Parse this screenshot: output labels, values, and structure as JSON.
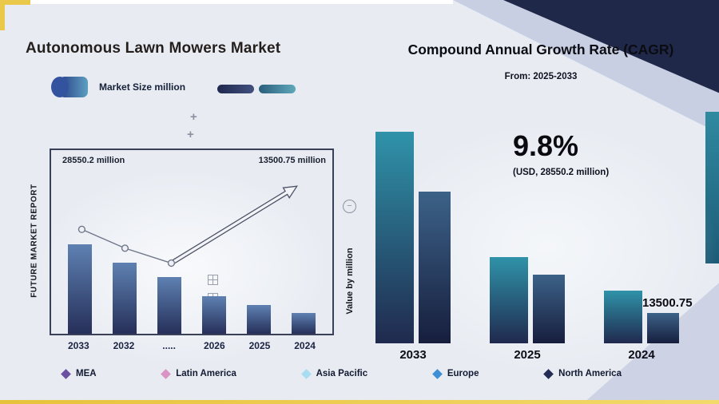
{
  "page": {
    "background": "#e8ecf2",
    "accent_yellow": "#e9c84a",
    "corner_navy": "#1f2849",
    "edge_teal": "#2f8aa0"
  },
  "left": {
    "title": "Autonomous Lawn Mowers Market",
    "legend_label": "Market Size million",
    "side_label": "FUTURE MARKET REPORT",
    "annotation_left": "28550.2 million",
    "annotation_right": "13500.75 million"
  },
  "right": {
    "title": "Compound Annual Growth Rate (CAGR)",
    "subtitle": "From: 2025-2033",
    "cagr": "9.8%",
    "cagr_note": "(USD, 28550.2 million)",
    "axis_label": "Value by million",
    "value_label": "13500.75"
  },
  "decor": {
    "plus": "+",
    "minus": "−"
  },
  "legend": {
    "items": [
      {
        "label": "MEA",
        "color": "#6b4fa0"
      },
      {
        "label": "Latin America",
        "color": "#d993c4"
      },
      {
        "label": "Asia Pacific",
        "color": "#a8dcf0"
      },
      {
        "label": "Europe",
        "color": "#3f8fd6"
      },
      {
        "label": "North America",
        "color": "#232c54"
      }
    ]
  },
  "chart_data": [
    {
      "type": "bar",
      "title": "Autonomous Lawn Mowers Market",
      "unit": "Market Size million",
      "categories": [
        "2033",
        "2032",
        ".....",
        "2026",
        "2025",
        "2024"
      ],
      "values_relative": [
        112,
        89,
        71,
        47,
        36,
        26
      ],
      "bar_gradient": [
        "#5e81b2",
        "#262f59"
      ],
      "annotations": [
        {
          "text": "28550.2 million",
          "at": "2033"
        },
        {
          "text": "13500.75 million",
          "at": "2024"
        }
      ],
      "notes": "stylized descending bars with declining marker line and rising trend arrow; no numeric axis shown"
    },
    {
      "type": "bar",
      "title": "Compound Annual Growth Rate (CAGR)",
      "subtitle": "From: 2025-2033",
      "cagr": "9.8%",
      "cagr_basis": "(USD, 28550.2 million)",
      "ylabel": "Value by million",
      "categories": [
        "2033",
        "2025",
        "2024"
      ],
      "series": [
        {
          "name": "series-a",
          "values_relative": [
            265,
            108,
            66
          ],
          "gradient": [
            "#2f93a9",
            "#20294e"
          ]
        },
        {
          "name": "series-b",
          "values_relative": [
            190,
            86,
            38
          ],
          "gradient": [
            "#3c6288",
            "#171e3d"
          ]
        }
      ],
      "value_annotation": "13500.75",
      "notes": "no numeric axis shown; heights are relative units read from the graphic"
    }
  ]
}
